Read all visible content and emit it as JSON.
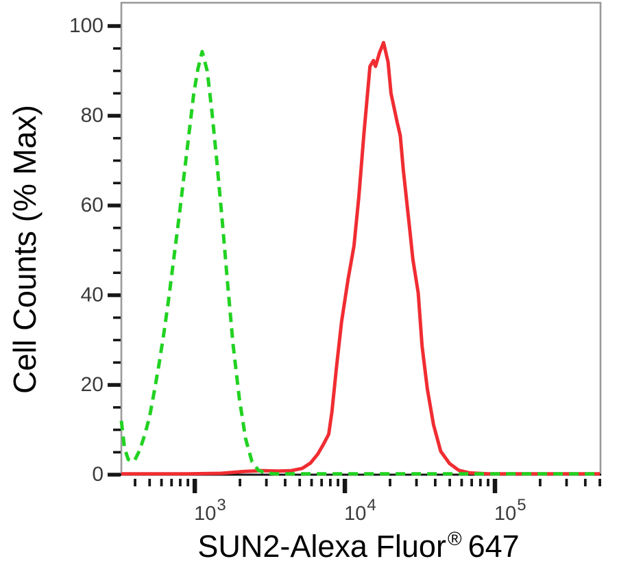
{
  "figure": {
    "y_axis_title": "Cell Counts (% Max)",
    "x_axis_title_prefix": "SUN2-Alexa Fluor",
    "x_axis_title_reg": "®",
    "x_axis_title_suffix": "647"
  },
  "chart_data": {
    "type": "line",
    "subtype": "flow-cytometry-histogram-overlay",
    "title": "",
    "xlabel": "SUN2-Alexa Fluor® 647",
    "ylabel": "Cell Counts (% Max)",
    "x_scale": "log10",
    "xlim": [
      324,
      505000
    ],
    "ylim": [
      0,
      105
    ],
    "grid": false,
    "legend": "none",
    "frame_color": "#9a9a9a",
    "axis_color": "#161616",
    "tick_label_color": "#3b3b3b",
    "y_axis": {
      "major_ticks": [
        0,
        20,
        40,
        60,
        80,
        100
      ],
      "minor_step": 5
    },
    "x_axis": {
      "major_ticks": [
        {
          "value": 1000,
          "base": "10",
          "exponent": "3"
        },
        {
          "value": 10000,
          "base": "10",
          "exponent": "4"
        },
        {
          "value": 100000,
          "base": "10",
          "exponent": "5"
        }
      ],
      "minor_ticks": [
        400,
        500,
        600,
        700,
        800,
        900,
        2000,
        3000,
        4000,
        5000,
        6000,
        7000,
        8000,
        9000,
        20000,
        30000,
        40000,
        50000,
        60000,
        70000,
        80000,
        90000,
        200000,
        300000,
        400000,
        500000
      ]
    },
    "series": [
      {
        "id": "green-dashed-control",
        "name": "green dashed curve",
        "color": "#22d222",
        "style": "dashed",
        "points": [
          [
            324,
            12
          ],
          [
            340,
            6
          ],
          [
            360,
            3.4
          ],
          [
            395,
            3.0
          ],
          [
            430,
            5.5
          ],
          [
            465,
            9
          ],
          [
            500,
            13
          ],
          [
            540,
            19
          ],
          [
            580,
            25
          ],
          [
            625,
            32
          ],
          [
            675,
            40
          ],
          [
            730,
            49
          ],
          [
            790,
            58
          ],
          [
            850,
            67
          ],
          [
            915,
            76
          ],
          [
            985,
            85
          ],
          [
            1050,
            90.5
          ],
          [
            1120,
            94.3
          ],
          [
            1210,
            90
          ],
          [
            1300,
            81
          ],
          [
            1400,
            70
          ],
          [
            1520,
            57
          ],
          [
            1650,
            43
          ],
          [
            1800,
            29
          ],
          [
            1980,
            17
          ],
          [
            2180,
            8
          ],
          [
            2400,
            3
          ],
          [
            2650,
            1
          ],
          [
            2950,
            0.4
          ],
          [
            3400,
            0.2
          ],
          [
            500000,
            0.2
          ]
        ]
      },
      {
        "id": "red-solid-sun2",
        "name": "red solid curve",
        "color": "#f02d32",
        "style": "solid",
        "points": [
          [
            324,
            0.2
          ],
          [
            900,
            0.2
          ],
          [
            1500,
            0.3
          ],
          [
            2100,
            0.7
          ],
          [
            2800,
            0.9
          ],
          [
            3600,
            0.8
          ],
          [
            4400,
            0.9
          ],
          [
            5200,
            1.4
          ],
          [
            5900,
            2.6
          ],
          [
            6600,
            4.6
          ],
          [
            7200,
            6.8
          ],
          [
            7800,
            9.0
          ],
          [
            8200,
            14
          ],
          [
            8800,
            24
          ],
          [
            9500,
            34
          ],
          [
            10500,
            43.5
          ],
          [
            11500,
            51
          ],
          [
            12400,
            62
          ],
          [
            13400,
            76
          ],
          [
            14700,
            91
          ],
          [
            15500,
            92.3
          ],
          [
            16000,
            91
          ],
          [
            17000,
            94
          ],
          [
            18100,
            96.3
          ],
          [
            19400,
            92
          ],
          [
            20300,
            85
          ],
          [
            21000,
            82.7
          ],
          [
            22300,
            78.6
          ],
          [
            23400,
            75.6
          ],
          [
            24500,
            68
          ],
          [
            27000,
            55
          ],
          [
            28400,
            48
          ],
          [
            30800,
            40.5
          ],
          [
            32700,
            28.7
          ],
          [
            35400,
            19.2
          ],
          [
            38900,
            11.2
          ],
          [
            43500,
            5.2
          ],
          [
            49800,
            2.5
          ],
          [
            57300,
            1.0
          ],
          [
            67800,
            0.4
          ],
          [
            90000,
            0.2
          ],
          [
            500000,
            0.2
          ]
        ]
      }
    ]
  }
}
